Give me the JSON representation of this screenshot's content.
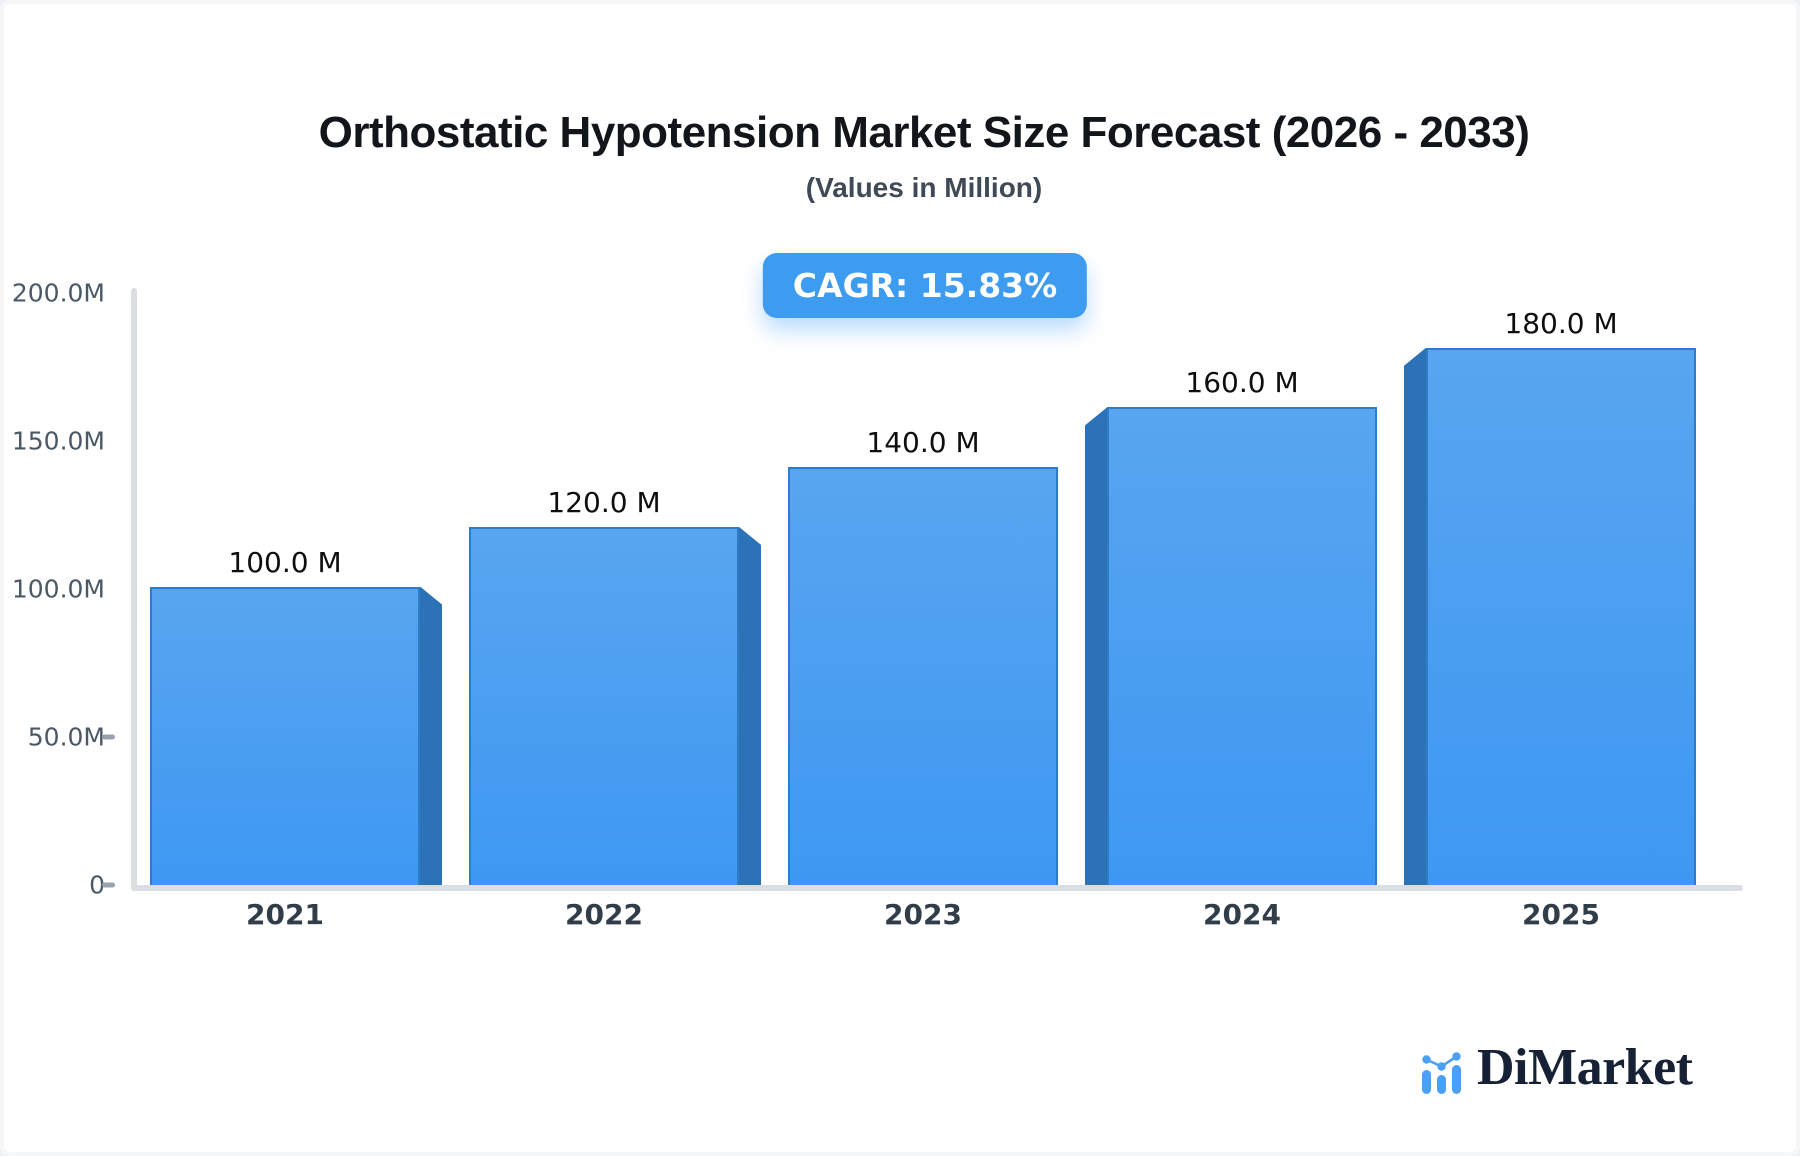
{
  "header": {
    "title": "Orthostatic Hypotension Market Size Forecast (2026 - 2033)",
    "subtitle": "(Values in Million)",
    "cagr_badge": "CAGR: 15.83%"
  },
  "chart_data": {
    "type": "bar",
    "title": "Orthostatic Hypotension Market Size Forecast (2026 - 2033)",
    "subtitle": "(Values in Million)",
    "unit": "Million",
    "categories": [
      "2021",
      "2022",
      "2023",
      "2024",
      "2025"
    ],
    "values": [
      100,
      120,
      140,
      160,
      180
    ],
    "value_labels": [
      "100.0 M",
      "120.0 M",
      "140.0 M",
      "160.0 M",
      "180.0 M"
    ],
    "y_ticks": [
      "200.0M",
      "150.0M",
      "100.0M",
      "50.0M",
      "0"
    ],
    "ylim": [
      0,
      200
    ],
    "grid": "off",
    "legend": "none",
    "cagr_percent": 15.83
  },
  "footer": {
    "brand": "DiMarket"
  },
  "colors": {
    "title": "#12161b",
    "subtitle": "#3f4a56",
    "badge_bg": "#3d9bf0",
    "badge_text": "#ffffff",
    "bar_face_top": "#58a5f0",
    "bar_face_bottom": "#3e98f2",
    "bar_edge": "#2e7cc8",
    "bar_side": "#2c72b6",
    "axis": "#dadde2",
    "tick": "#9aa3ad",
    "y_label": "#4b5967",
    "x_label": "#313d49",
    "value_label": "#0e0e0e",
    "logo_blue": "#4aa0f4",
    "logo_text": "#172135"
  }
}
